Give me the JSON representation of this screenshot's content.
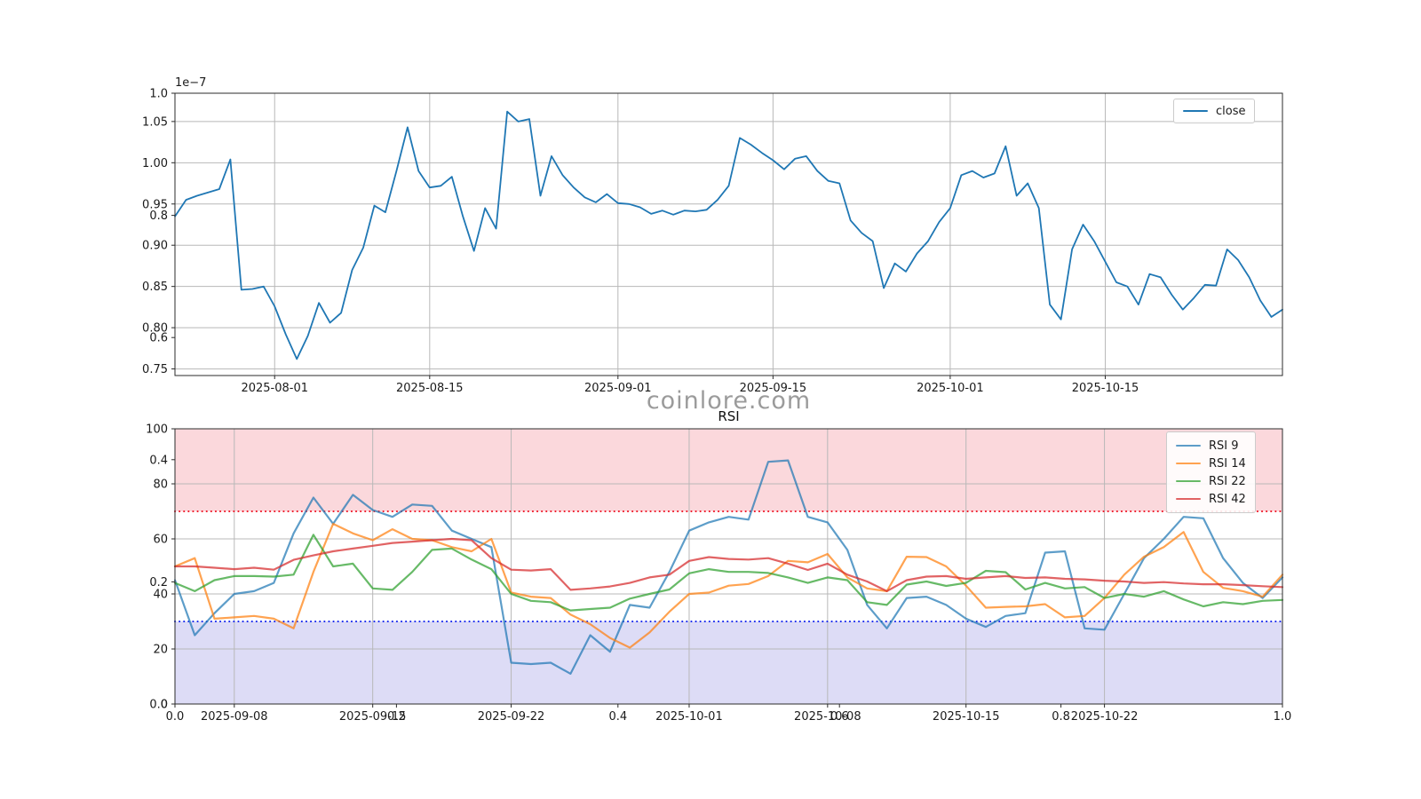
{
  "watermark": "coinlore.com",
  "figure": {
    "background": "#ffffff",
    "grid_color": "#b8b8b8",
    "spine_color": "#2b2b2b"
  },
  "overlay_axis": {
    "x_tick_labels": [
      "0.0",
      "0.2",
      "0.4",
      "0.6",
      "0.8",
      "1.0"
    ],
    "y_tick_labels": [
      "0.0",
      "0.2",
      "0.4",
      "0.6",
      "0.8",
      "1.0"
    ]
  },
  "chart_data": [
    {
      "type": "line",
      "title": "",
      "offset_text": "1e−7",
      "xlabel": "",
      "ylabel": "",
      "grid": true,
      "legend_loc": "upper right",
      "x_tick_labels": [
        "2025-08-01",
        "2025-08-15",
        "2025-09-01",
        "2025-09-15",
        "2025-10-01",
        "2025-10-15"
      ],
      "x_tick_idx": [
        9,
        23,
        40,
        54,
        70,
        84
      ],
      "y_ticks": [
        0.75,
        0.8,
        0.85,
        0.9,
        0.95,
        1.0,
        1.05
      ],
      "y_tick_labels": [
        "0.75",
        "0.80",
        "0.85",
        "0.90",
        "0.95",
        "1.00",
        "1.05"
      ],
      "ylim": [
        0.742,
        1.0843
      ],
      "series": [
        {
          "name": "close",
          "color": "#1f77b4",
          "opacity": 1,
          "width": 1.8,
          "values": [
            0.935,
            0.955,
            0.96,
            0.964,
            0.968,
            1.004,
            0.846,
            0.847,
            0.85,
            0.826,
            0.792,
            0.762,
            0.79,
            0.83,
            0.806,
            0.818,
            0.87,
            0.897,
            0.948,
            0.94,
            0.99,
            1.043,
            0.99,
            0.97,
            0.972,
            0.983,
            0.935,
            0.893,
            0.945,
            0.92,
            1.062,
            1.05,
            1.053,
            0.96,
            1.008,
            0.985,
            0.97,
            0.958,
            0.952,
            0.962,
            0.951,
            0.95,
            0.946,
            0.938,
            0.942,
            0.937,
            0.942,
            0.941,
            0.943,
            0.955,
            0.972,
            1.03,
            1.022,
            1.012,
            1.003,
            0.992,
            1.005,
            1.008,
            0.99,
            0.978,
            0.975,
            0.93,
            0.915,
            0.905,
            0.848,
            0.878,
            0.868,
            0.89,
            0.905,
            0.928,
            0.945,
            0.985,
            0.99,
            0.982,
            0.987,
            1.02,
            0.96,
            0.975,
            0.945,
            0.828,
            0.81,
            0.895,
            0.925,
            0.905,
            0.88,
            0.855,
            0.85,
            0.828,
            0.865,
            0.861,
            0.84,
            0.822,
            0.836,
            0.852,
            0.851,
            0.895,
            0.882,
            0.861,
            0.833,
            0.813,
            0.822
          ]
        }
      ]
    },
    {
      "type": "line",
      "title": "RSI",
      "xlabel": "",
      "ylabel": "",
      "grid": true,
      "legend_loc": "upper right",
      "x_tick_labels": [
        "2025-09-08",
        "2025-09-15",
        "2025-09-22",
        "2025-10-01",
        "2025-10-08",
        "2025-10-15",
        "2025-10-22"
      ],
      "x_tick_idx": [
        3,
        10,
        17,
        26,
        33,
        40,
        47
      ],
      "y_ticks": [
        0,
        20,
        40,
        60,
        80,
        100
      ],
      "y_tick_labels": [
        "0",
        "20",
        "40",
        "60",
        "80",
        "100"
      ],
      "ylim": [
        0,
        100
      ],
      "bands": [
        {
          "from": 70,
          "to": 100,
          "color": "#fbd8dc",
          "meaning": "overbought"
        },
        {
          "from": 0,
          "to": 30,
          "color": "#dddcf6",
          "meaning": "oversold"
        }
      ],
      "hlines": [
        {
          "y": 70,
          "color": "#ee1122",
          "style": "dotted"
        },
        {
          "y": 30,
          "color": "#1122ee",
          "style": "dotted"
        }
      ],
      "series": [
        {
          "name": "RSI 9",
          "color": "#1f77b4",
          "opacity": 0.72,
          "width": 2.2,
          "values": [
            45,
            25,
            33,
            40,
            41,
            44,
            62,
            75,
            65.5,
            76,
            70.5,
            68,
            72.5,
            72,
            63,
            60,
            57,
            15,
            14.5,
            15,
            11,
            25,
            19,
            36,
            35,
            48,
            63,
            66,
            68,
            67,
            88,
            88.5,
            68,
            66,
            56,
            36,
            27.5,
            38.5,
            39,
            36,
            31,
            28,
            32,
            33,
            55,
            55.5,
            27.5,
            27,
            40,
            53,
            60,
            68,
            67.5,
            53,
            44,
            38.5,
            46
          ]
        },
        {
          "name": "RSI 14",
          "color": "#ff7f0e",
          "opacity": 0.72,
          "width": 2.2,
          "values": [
            50,
            53,
            31,
            31.5,
            32,
            31,
            27.5,
            48,
            65.5,
            62,
            59.5,
            63.5,
            60,
            59.5,
            57,
            55.5,
            60,
            40.5,
            39,
            38.5,
            32.5,
            29,
            24,
            20.5,
            26,
            33.5,
            40,
            40.5,
            43,
            43.6,
            46.5,
            52,
            51.5,
            54.5,
            46,
            42,
            41,
            53.5,
            53.4,
            50,
            43,
            35,
            35.3,
            35.5,
            36.3,
            31.5,
            32,
            38.5,
            47,
            53.5,
            57,
            62.5,
            48,
            42.2,
            41,
            39,
            47
          ]
        },
        {
          "name": "RSI 22",
          "color": "#2ca02c",
          "opacity": 0.72,
          "width": 2.2,
          "values": [
            44,
            41,
            45,
            46.5,
            46.5,
            46.3,
            47,
            61.5,
            50,
            51,
            42,
            41.5,
            48,
            56,
            56.5,
            52.5,
            49,
            40,
            37.5,
            37,
            34,
            34.5,
            35,
            38.3,
            40,
            41.6,
            47.5,
            49,
            48,
            48,
            47.6,
            46,
            44,
            46,
            45,
            37,
            36,
            43.4,
            44.5,
            42.9,
            44,
            48.4,
            47.9,
            41.6,
            44,
            42,
            42.5,
            38.5,
            40,
            39,
            41,
            38,
            35.5,
            37,
            36.3,
            37.5,
            37.8
          ]
        },
        {
          "name": "RSI 42",
          "color": "#d62728",
          "opacity": 0.72,
          "width": 2.2,
          "values": [
            50,
            50,
            49.5,
            49,
            49.5,
            48.8,
            52.4,
            54,
            55.5,
            56.5,
            57.5,
            58.5,
            59,
            59.5,
            60,
            59.5,
            53,
            48.8,
            48.5,
            49,
            41.5,
            42,
            42.7,
            44,
            46,
            47,
            52,
            53.4,
            52.7,
            52.5,
            53,
            51,
            48.7,
            51,
            47,
            44.5,
            41,
            45,
            46.3,
            46.5,
            45.5,
            46,
            46.5,
            45.8,
            46,
            45.5,
            45.3,
            44.8,
            44.5,
            44,
            44.3,
            43.8,
            43.5,
            43.5,
            43.2,
            42.8,
            42.5
          ]
        }
      ]
    }
  ]
}
